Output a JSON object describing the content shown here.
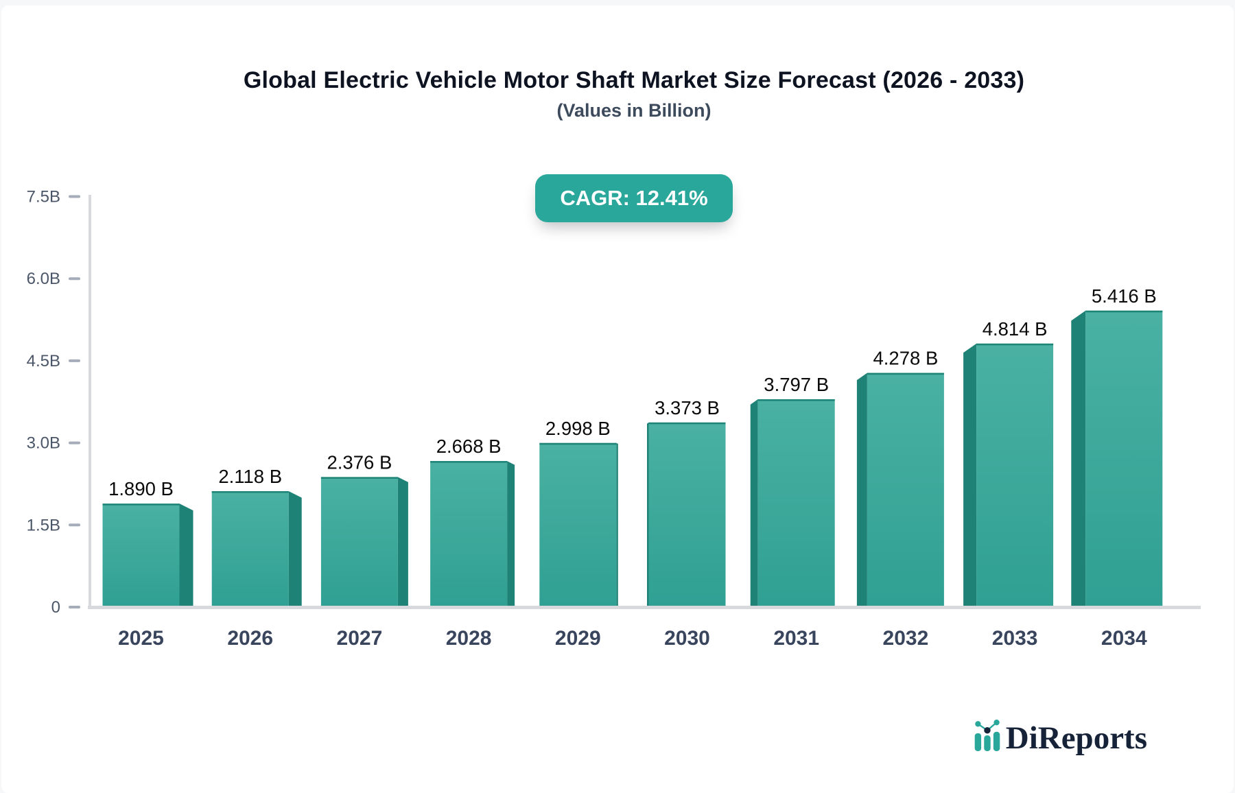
{
  "title": "Global Electric Vehicle Motor Shaft Market Size Forecast (2026 - 2033)",
  "subtitle": "(Values in Billion)",
  "badge": {
    "label": "CAGR: 12.41%"
  },
  "brand": {
    "name": "DiReports",
    "icon": "mini-bar-chart-icon"
  },
  "colors": {
    "badge_bg": "#2aa79b",
    "bar_face_top": "#4ab1a3",
    "bar_face_bottom": "#2fa093",
    "bar_side": "#1f8277",
    "bar_cap": "#1e8478",
    "axis_line": "#d7d9dd",
    "tick_dash": "#a6adba",
    "y_label": "#4b5668",
    "x_label": "#39455c",
    "value_label": "#0b0b0b",
    "title": "#0d1321",
    "subtitle": "#3d4a5c",
    "logo_navy": "#152238",
    "logo_teal": "#2aa79b"
  },
  "chart_data": {
    "type": "bar",
    "title": "Global Electric Vehicle Motor Shaft Market Size Forecast (2026 - 2033)",
    "subtitle": "(Values in Billion)",
    "annotation": "CAGR: 12.41%",
    "categories": [
      "2025",
      "2026",
      "2027",
      "2028",
      "2029",
      "2030",
      "2031",
      "2032",
      "2033",
      "2034"
    ],
    "values": [
      1.89,
      2.118,
      2.376,
      2.668,
      2.998,
      3.373,
      3.797,
      4.278,
      4.814,
      5.416
    ],
    "value_labels": [
      "1.890 B",
      "2.118 B",
      "2.376 B",
      "2.668 B",
      "2.998 B",
      "3.373 B",
      "3.797 B",
      "4.278 B",
      "4.814 B",
      "5.416 B"
    ],
    "y_ticks": [
      {
        "label": "7.5B",
        "value": 7.5
      },
      {
        "label": "6.0B",
        "value": 6.0
      },
      {
        "label": "4.5B",
        "value": 4.5
      },
      {
        "label": "3.0B",
        "value": 3.0
      },
      {
        "label": "1.5B",
        "value": 1.5
      },
      {
        "label": "0",
        "value": 0
      }
    ],
    "ylim": [
      0,
      7.5
    ],
    "xlabel": "",
    "ylabel": "",
    "grid": "off",
    "legend": "none",
    "style": "3d-perspective-bars"
  }
}
